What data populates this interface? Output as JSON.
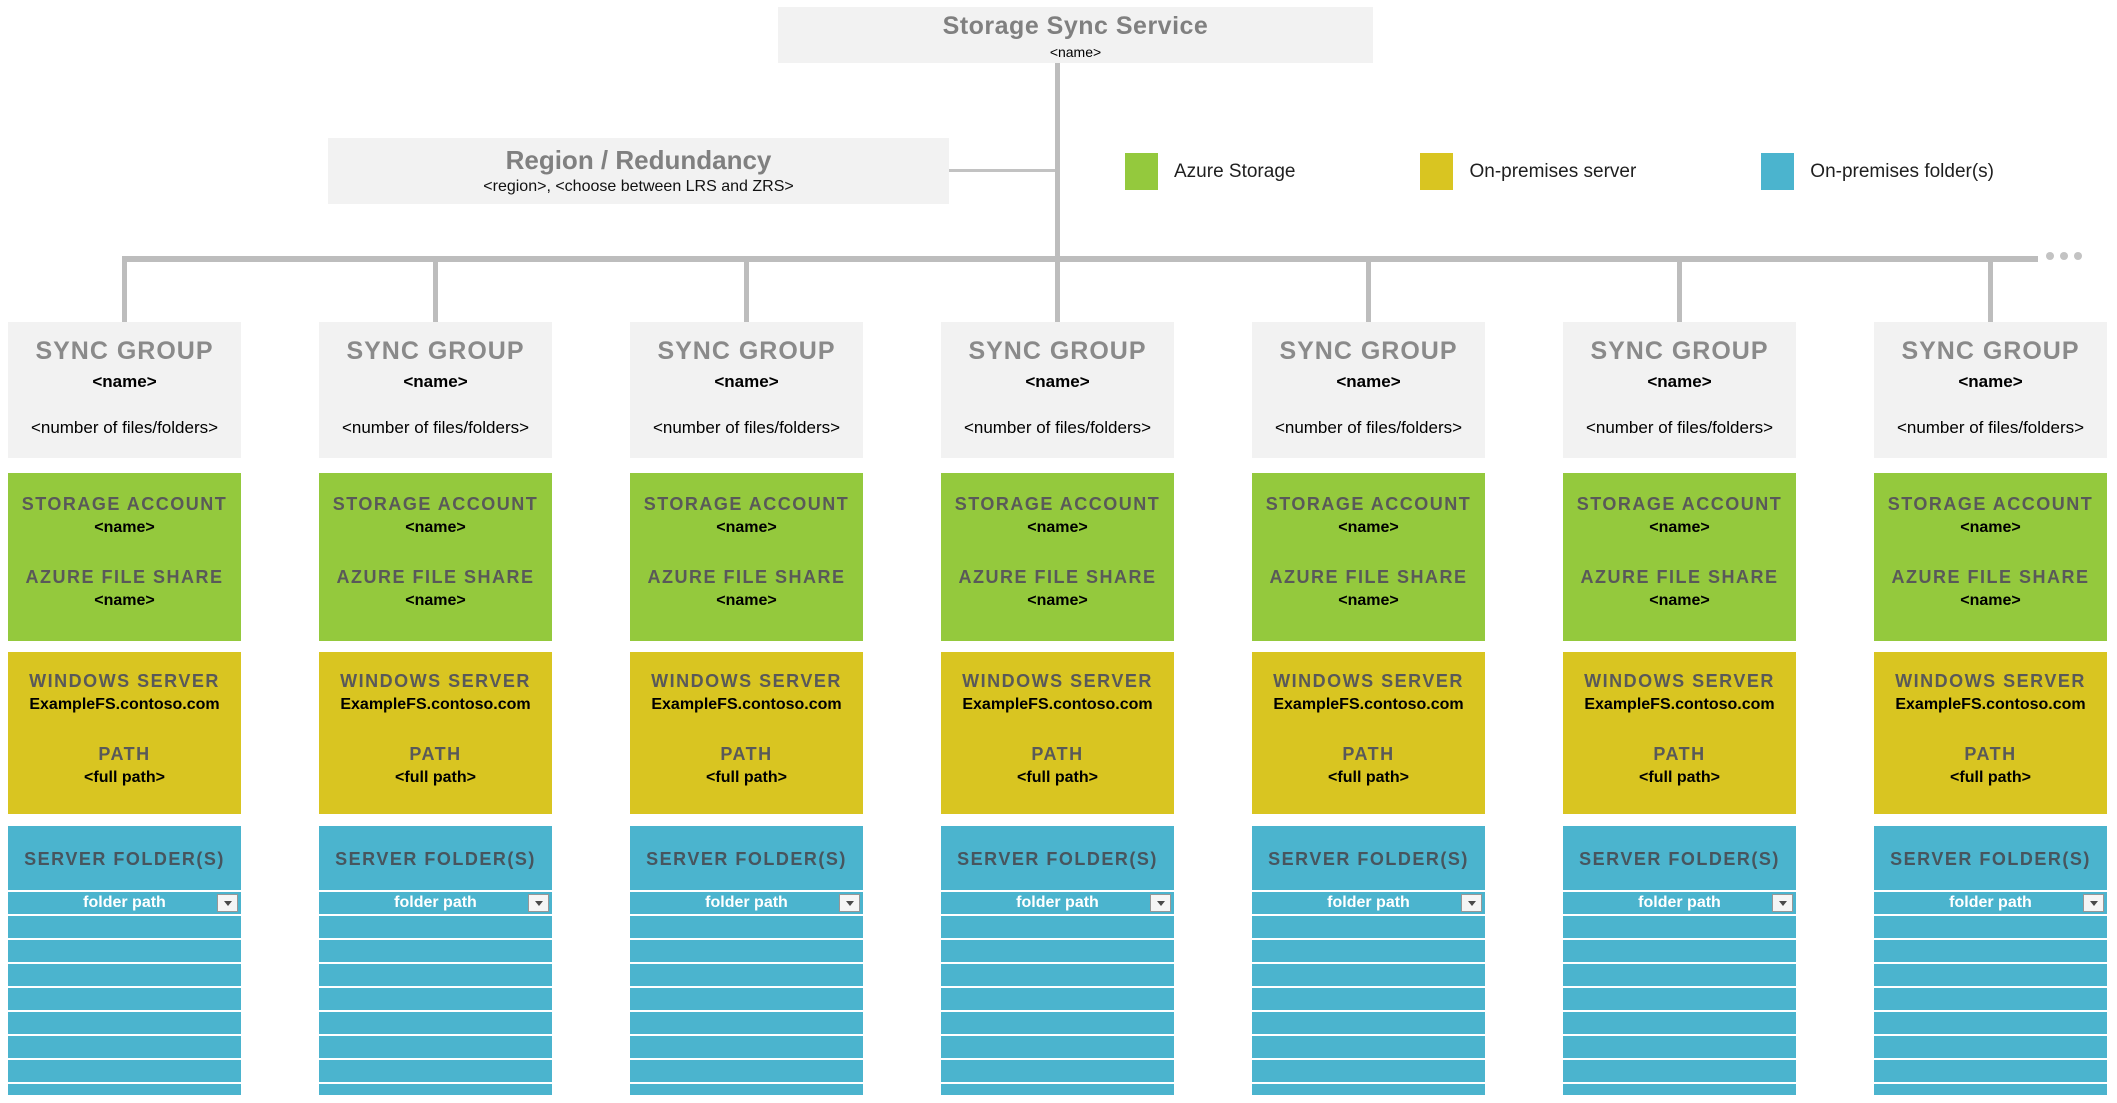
{
  "root": {
    "title": "Storage Sync Service",
    "name_placeholder": "<name>"
  },
  "region": {
    "title": "Region / Redundancy",
    "subtitle": "<region>, <choose between LRS and ZRS>"
  },
  "legend": [
    {
      "label": "Azure Storage",
      "color": "#94c93d"
    },
    {
      "label": "On-premises server",
      "color": "#d9c521"
    },
    {
      "label": "On-premises folder(s)",
      "color": "#4bb4ce"
    }
  ],
  "overflow_indicator": "...",
  "colors": {
    "azure_storage_green": "#94c93d",
    "on_premises_server_yellow": "#d9c521",
    "on_premises_folder_teal": "#4bb4ce",
    "box_gray": "#f2f2f2",
    "connector_gray": "#bdbdbd",
    "title_gray": "#808080"
  },
  "groups": [
    {
      "header": "SYNC GROUP",
      "name": "<name>",
      "files": "<number of files/folders>",
      "storage_account_label": "STORAGE ACCOUNT",
      "storage_account_name": "<name>",
      "file_share_label": "AZURE FILE SHARE",
      "file_share_name": "<name>",
      "server_label": "WINDOWS SERVER",
      "server_name": "ExampleFS.contoso.com",
      "path_label": "PATH",
      "path_value": "<full path>",
      "folders_label": "SERVER FOLDER(S)",
      "folder_path_value": "folder path",
      "empty_rows": 7
    },
    {
      "header": "SYNC GROUP",
      "name": "<name>",
      "files": "<number of files/folders>",
      "storage_account_label": "STORAGE ACCOUNT",
      "storage_account_name": "<name>",
      "file_share_label": "AZURE FILE SHARE",
      "file_share_name": "<name>",
      "server_label": "WINDOWS SERVER",
      "server_name": "ExampleFS.contoso.com",
      "path_label": "PATH",
      "path_value": "<full path>",
      "folders_label": "SERVER FOLDER(S)",
      "folder_path_value": "folder path",
      "empty_rows": 7
    },
    {
      "header": "SYNC GROUP",
      "name": "<name>",
      "files": "<number of files/folders>",
      "storage_account_label": "STORAGE ACCOUNT",
      "storage_account_name": "<name>",
      "file_share_label": "AZURE FILE SHARE",
      "file_share_name": "<name>",
      "server_label": "WINDOWS SERVER",
      "server_name": "ExampleFS.contoso.com",
      "path_label": "PATH",
      "path_value": "<full path>",
      "folders_label": "SERVER FOLDER(S)",
      "folder_path_value": "folder path",
      "empty_rows": 7
    },
    {
      "header": "SYNC GROUP",
      "name": "<name>",
      "files": "<number of files/folders>",
      "storage_account_label": "STORAGE ACCOUNT",
      "storage_account_name": "<name>",
      "file_share_label": "AZURE FILE SHARE",
      "file_share_name": "<name>",
      "server_label": "WINDOWS SERVER",
      "server_name": "ExampleFS.contoso.com",
      "path_label": "PATH",
      "path_value": "<full path>",
      "folders_label": "SERVER FOLDER(S)",
      "folder_path_value": "folder path",
      "empty_rows": 7
    },
    {
      "header": "SYNC GROUP",
      "name": "<name>",
      "files": "<number of files/folders>",
      "storage_account_label": "STORAGE ACCOUNT",
      "storage_account_name": "<name>",
      "file_share_label": "AZURE FILE SHARE",
      "file_share_name": "<name>",
      "server_label": "WINDOWS SERVER",
      "server_name": "ExampleFS.contoso.com",
      "path_label": "PATH",
      "path_value": "<full path>",
      "folders_label": "SERVER FOLDER(S)",
      "folder_path_value": "folder path",
      "empty_rows": 7
    },
    {
      "header": "SYNC GROUP",
      "name": "<name>",
      "files": "<number of files/folders>",
      "storage_account_label": "STORAGE ACCOUNT",
      "storage_account_name": "<name>",
      "file_share_label": "AZURE FILE SHARE",
      "file_share_name": "<name>",
      "server_label": "WINDOWS SERVER",
      "server_name": "ExampleFS.contoso.com",
      "path_label": "PATH",
      "path_value": "<full path>",
      "folders_label": "SERVER FOLDER(S)",
      "folder_path_value": "folder path",
      "empty_rows": 7
    },
    {
      "header": "SYNC GROUP",
      "name": "<name>",
      "files": "<number of files/folders>",
      "storage_account_label": "STORAGE ACCOUNT",
      "storage_account_name": "<name>",
      "file_share_label": "AZURE FILE SHARE",
      "file_share_name": "<name>",
      "server_label": "WINDOWS SERVER",
      "server_name": "ExampleFS.contoso.com",
      "path_label": "PATH",
      "path_value": "<full path>",
      "folders_label": "SERVER FOLDER(S)",
      "folder_path_value": "folder path",
      "empty_rows": 7
    }
  ]
}
